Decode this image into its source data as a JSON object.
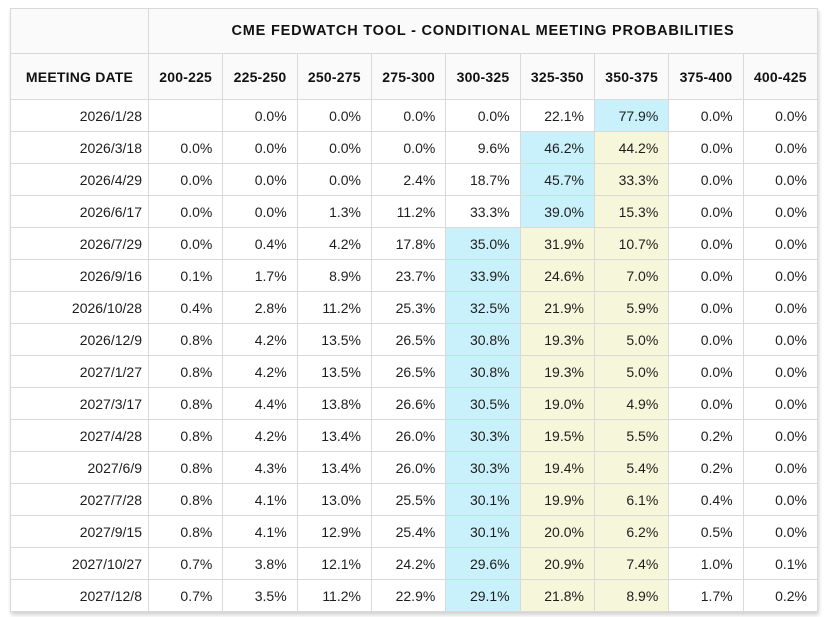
{
  "meta": {
    "title": "CME FEDWATCH TOOL - CONDITIONAL MEETING PROBABILITIES"
  },
  "colors": {
    "highlight_blue": "#c9f1fb",
    "highlight_yellow": "#f6f6da",
    "grid_border": "#d9d9d9",
    "outer_border": "#cfcfcf",
    "header_bg": "#fafafa",
    "header_text": "#111111",
    "cell_text": "#1d1d1d"
  },
  "table": {
    "corner_label": "",
    "date_column_header": "MEETING DATE",
    "rate_column_headers": [
      "200-225",
      "225-250",
      "250-275",
      "275-300",
      "300-325",
      "325-350",
      "350-375",
      "375-400",
      "400-425"
    ],
    "rows": [
      {
        "date": "2026/1/28",
        "values": [
          "",
          "0.0%",
          "0.0%",
          "0.0%",
          "0.0%",
          "22.1%",
          "77.9%",
          "0.0%",
          "0.0%"
        ],
        "highlights": [
          "",
          "",
          "",
          "",
          "",
          "",
          "blue",
          "",
          ""
        ]
      },
      {
        "date": "2026/3/18",
        "values": [
          "0.0%",
          "0.0%",
          "0.0%",
          "0.0%",
          "9.6%",
          "46.2%",
          "44.2%",
          "0.0%",
          "0.0%"
        ],
        "highlights": [
          "",
          "",
          "",
          "",
          "",
          "blue",
          "yellow",
          "",
          ""
        ]
      },
      {
        "date": "2026/4/29",
        "values": [
          "0.0%",
          "0.0%",
          "0.0%",
          "2.4%",
          "18.7%",
          "45.7%",
          "33.3%",
          "0.0%",
          "0.0%"
        ],
        "highlights": [
          "",
          "",
          "",
          "",
          "",
          "blue",
          "yellow",
          "",
          ""
        ]
      },
      {
        "date": "2026/6/17",
        "values": [
          "0.0%",
          "0.0%",
          "1.3%",
          "11.2%",
          "33.3%",
          "39.0%",
          "15.3%",
          "0.0%",
          "0.0%"
        ],
        "highlights": [
          "",
          "",
          "",
          "",
          "",
          "blue",
          "yellow",
          "",
          ""
        ]
      },
      {
        "date": "2026/7/29",
        "values": [
          "0.0%",
          "0.4%",
          "4.2%",
          "17.8%",
          "35.0%",
          "31.9%",
          "10.7%",
          "0.0%",
          "0.0%"
        ],
        "highlights": [
          "",
          "",
          "",
          "",
          "blue",
          "yellow",
          "yellow",
          "",
          ""
        ]
      },
      {
        "date": "2026/9/16",
        "values": [
          "0.1%",
          "1.7%",
          "8.9%",
          "23.7%",
          "33.9%",
          "24.6%",
          "7.0%",
          "0.0%",
          "0.0%"
        ],
        "highlights": [
          "",
          "",
          "",
          "",
          "blue",
          "yellow",
          "yellow",
          "",
          ""
        ]
      },
      {
        "date": "2026/10/28",
        "values": [
          "0.4%",
          "2.8%",
          "11.2%",
          "25.3%",
          "32.5%",
          "21.9%",
          "5.9%",
          "0.0%",
          "0.0%"
        ],
        "highlights": [
          "",
          "",
          "",
          "",
          "blue",
          "yellow",
          "yellow",
          "",
          ""
        ]
      },
      {
        "date": "2026/12/9",
        "values": [
          "0.8%",
          "4.2%",
          "13.5%",
          "26.5%",
          "30.8%",
          "19.3%",
          "5.0%",
          "0.0%",
          "0.0%"
        ],
        "highlights": [
          "",
          "",
          "",
          "",
          "blue",
          "yellow",
          "yellow",
          "",
          ""
        ]
      },
      {
        "date": "2027/1/27",
        "values": [
          "0.8%",
          "4.2%",
          "13.5%",
          "26.5%",
          "30.8%",
          "19.3%",
          "5.0%",
          "0.0%",
          "0.0%"
        ],
        "highlights": [
          "",
          "",
          "",
          "",
          "blue",
          "yellow",
          "yellow",
          "",
          ""
        ]
      },
      {
        "date": "2027/3/17",
        "values": [
          "0.8%",
          "4.4%",
          "13.8%",
          "26.6%",
          "30.5%",
          "19.0%",
          "4.9%",
          "0.0%",
          "0.0%"
        ],
        "highlights": [
          "",
          "",
          "",
          "",
          "blue",
          "yellow",
          "yellow",
          "",
          ""
        ]
      },
      {
        "date": "2027/4/28",
        "values": [
          "0.8%",
          "4.2%",
          "13.4%",
          "26.0%",
          "30.3%",
          "19.5%",
          "5.5%",
          "0.2%",
          "0.0%"
        ],
        "highlights": [
          "",
          "",
          "",
          "",
          "blue",
          "yellow",
          "yellow",
          "",
          ""
        ]
      },
      {
        "date": "2027/6/9",
        "values": [
          "0.8%",
          "4.3%",
          "13.4%",
          "26.0%",
          "30.3%",
          "19.4%",
          "5.4%",
          "0.2%",
          "0.0%"
        ],
        "highlights": [
          "",
          "",
          "",
          "",
          "blue",
          "yellow",
          "yellow",
          "",
          ""
        ]
      },
      {
        "date": "2027/7/28",
        "values": [
          "0.8%",
          "4.1%",
          "13.0%",
          "25.5%",
          "30.1%",
          "19.9%",
          "6.1%",
          "0.4%",
          "0.0%"
        ],
        "highlights": [
          "",
          "",
          "",
          "",
          "blue",
          "yellow",
          "yellow",
          "",
          ""
        ]
      },
      {
        "date": "2027/9/15",
        "values": [
          "0.8%",
          "4.1%",
          "12.9%",
          "25.4%",
          "30.1%",
          "20.0%",
          "6.2%",
          "0.5%",
          "0.0%"
        ],
        "highlights": [
          "",
          "",
          "",
          "",
          "blue",
          "yellow",
          "yellow",
          "",
          ""
        ]
      },
      {
        "date": "2027/10/27",
        "values": [
          "0.7%",
          "3.8%",
          "12.1%",
          "24.2%",
          "29.6%",
          "20.9%",
          "7.4%",
          "1.0%",
          "0.1%"
        ],
        "highlights": [
          "",
          "",
          "",
          "",
          "blue",
          "yellow",
          "yellow",
          "",
          ""
        ]
      },
      {
        "date": "2027/12/8",
        "values": [
          "0.7%",
          "3.5%",
          "11.2%",
          "22.9%",
          "29.1%",
          "21.8%",
          "8.9%",
          "1.7%",
          "0.2%"
        ],
        "highlights": [
          "",
          "",
          "",
          "",
          "blue",
          "yellow",
          "yellow",
          "",
          ""
        ]
      }
    ]
  },
  "chart_data": {
    "type": "table",
    "title": "CME FEDWATCH TOOL - CONDITIONAL MEETING PROBABILITIES",
    "row_header": "MEETING DATE",
    "columns": [
      "200-225",
      "225-250",
      "250-275",
      "275-300",
      "300-325",
      "325-350",
      "350-375",
      "375-400",
      "400-425"
    ],
    "unit": "percent",
    "rows": [
      {
        "meeting_date": "2026/1/28",
        "values": [
          null,
          0.0,
          0.0,
          0.0,
          0.0,
          22.1,
          77.9,
          0.0,
          0.0
        ]
      },
      {
        "meeting_date": "2026/3/18",
        "values": [
          0.0,
          0.0,
          0.0,
          0.0,
          9.6,
          46.2,
          44.2,
          0.0,
          0.0
        ]
      },
      {
        "meeting_date": "2026/4/29",
        "values": [
          0.0,
          0.0,
          0.0,
          2.4,
          18.7,
          45.7,
          33.3,
          0.0,
          0.0
        ]
      },
      {
        "meeting_date": "2026/6/17",
        "values": [
          0.0,
          0.0,
          1.3,
          11.2,
          33.3,
          39.0,
          15.3,
          0.0,
          0.0
        ]
      },
      {
        "meeting_date": "2026/7/29",
        "values": [
          0.0,
          0.4,
          4.2,
          17.8,
          35.0,
          31.9,
          10.7,
          0.0,
          0.0
        ]
      },
      {
        "meeting_date": "2026/9/16",
        "values": [
          0.1,
          1.7,
          8.9,
          23.7,
          33.9,
          24.6,
          7.0,
          0.0,
          0.0
        ]
      },
      {
        "meeting_date": "2026/10/28",
        "values": [
          0.4,
          2.8,
          11.2,
          25.3,
          32.5,
          21.9,
          5.9,
          0.0,
          0.0
        ]
      },
      {
        "meeting_date": "2026/12/9",
        "values": [
          0.8,
          4.2,
          13.5,
          26.5,
          30.8,
          19.3,
          5.0,
          0.0,
          0.0
        ]
      },
      {
        "meeting_date": "2027/1/27",
        "values": [
          0.8,
          4.2,
          13.5,
          26.5,
          30.8,
          19.3,
          5.0,
          0.0,
          0.0
        ]
      },
      {
        "meeting_date": "2027/3/17",
        "values": [
          0.8,
          4.4,
          13.8,
          26.6,
          30.5,
          19.0,
          4.9,
          0.0,
          0.0
        ]
      },
      {
        "meeting_date": "2027/4/28",
        "values": [
          0.8,
          4.2,
          13.4,
          26.0,
          30.3,
          19.5,
          5.5,
          0.2,
          0.0
        ]
      },
      {
        "meeting_date": "2027/6/9",
        "values": [
          0.8,
          4.3,
          13.4,
          26.0,
          30.3,
          19.4,
          5.4,
          0.2,
          0.0
        ]
      },
      {
        "meeting_date": "2027/7/28",
        "values": [
          0.8,
          4.1,
          13.0,
          25.5,
          30.1,
          19.9,
          6.1,
          0.4,
          0.0
        ]
      },
      {
        "meeting_date": "2027/9/15",
        "values": [
          0.8,
          4.1,
          12.9,
          25.4,
          30.1,
          20.0,
          6.2,
          0.5,
          0.0
        ]
      },
      {
        "meeting_date": "2027/10/27",
        "values": [
          0.7,
          3.8,
          12.1,
          24.2,
          29.6,
          20.9,
          7.4,
          1.0,
          0.1
        ]
      },
      {
        "meeting_date": "2027/12/8",
        "values": [
          0.7,
          3.5,
          11.2,
          22.9,
          29.1,
          21.8,
          8.9,
          1.7,
          0.2
        ]
      }
    ]
  }
}
